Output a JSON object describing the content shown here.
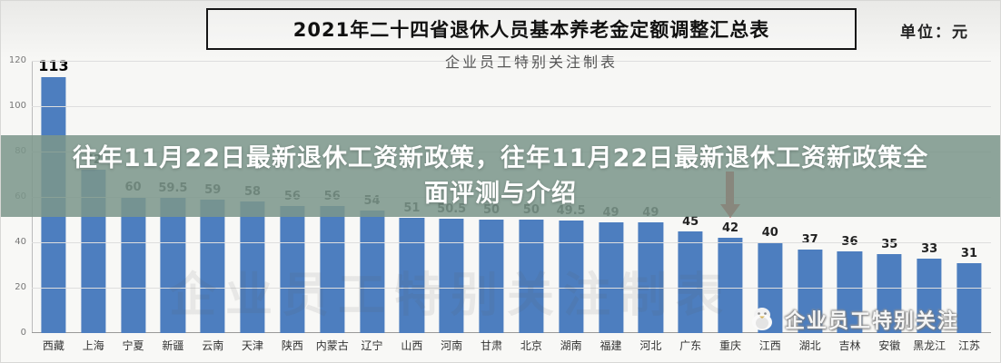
{
  "header": {
    "title": "2021年二十四省退休人员基本养老金定额调整汇总表",
    "subtitle": "企业员工特别关注制表",
    "unit_label": "单位：元"
  },
  "overlay": {
    "line1": "往年11月22日最新退休工资新政策，往年11月22日最新退休工资新政策全",
    "line2": "面评测与介绍"
  },
  "watermark": {
    "center_text": "企业员工特别关注制表",
    "brand_text": "企业员工特别关注"
  },
  "chart_data": {
    "type": "bar",
    "title": "2021年二十四省退休人员基本养老金定额调整汇总表",
    "subtitle": "企业员工特别关注制表",
    "unit": "元",
    "categories": [
      "西藏",
      "上海",
      "宁夏",
      "新疆",
      "云南",
      "天津",
      "陕西",
      "内蒙古",
      "辽宁",
      "山西",
      "河南",
      "甘肃",
      "北京",
      "湖南",
      "福建",
      "河北",
      "广东",
      "重庆",
      "江西",
      "湖北",
      "吉林",
      "安徽",
      "黑龙江",
      "江苏"
    ],
    "values": [
      113,
      72,
      60,
      59.5,
      59,
      58,
      56,
      56,
      54,
      51,
      50.5,
      50,
      50,
      49.5,
      49,
      49,
      45,
      42,
      40,
      37,
      36,
      35,
      33,
      31
    ],
    "ylim": [
      0,
      120
    ],
    "yticks": [
      0,
      20,
      40,
      60,
      80,
      100,
      120
    ],
    "grid": true,
    "legend": "none",
    "bar_color": "#4d7ebf",
    "annotation": {
      "type": "down-arrow",
      "category": "重庆",
      "index": 17,
      "color": "#d63030"
    }
  }
}
